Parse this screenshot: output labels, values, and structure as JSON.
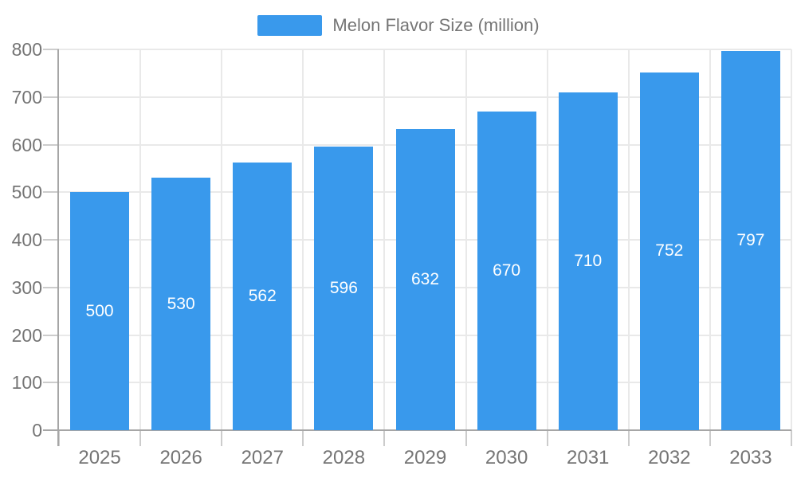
{
  "legend": {
    "label": "Melon Flavor Size (million)"
  },
  "chart_data": {
    "type": "bar",
    "title": "Melon Flavor Size (million)",
    "categories": [
      "2025",
      "2026",
      "2027",
      "2028",
      "2029",
      "2030",
      "2031",
      "2032",
      "2033"
    ],
    "series": [
      {
        "name": "Melon Flavor Size (million)",
        "values": [
          500,
          530,
          562,
          596,
          632,
          670,
          710,
          752,
          797
        ]
      }
    ],
    "xlabel": "",
    "ylabel": "",
    "ylim": [
      0,
      800
    ],
    "ytick_step": 100,
    "yticks": [
      "0",
      "100",
      "200",
      "300",
      "400",
      "500",
      "600",
      "700",
      "800"
    ],
    "grid": true,
    "legend_position": "top-center",
    "bar_labels_visible": true,
    "colors": {
      "bar": "#3999EC",
      "bar_label": "#FFFFFF",
      "axis_text": "#757575",
      "legend_text": "#757575",
      "axis_line": "#A6A6A6",
      "tick": "#CCCCCC",
      "grid": "#E9E9E9",
      "background": "#FFFFFF"
    }
  }
}
